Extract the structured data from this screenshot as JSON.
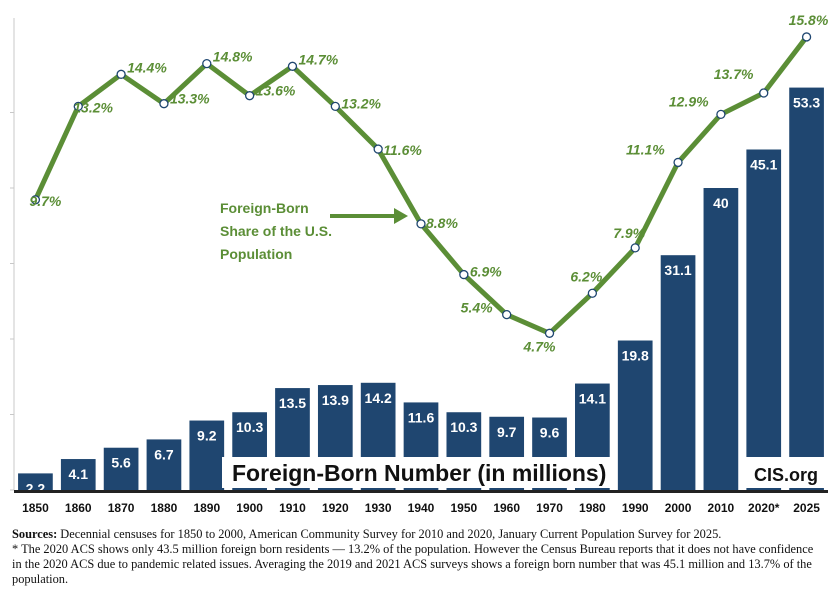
{
  "chart_data": {
    "type": "bar",
    "categories": [
      "1850",
      "1860",
      "1870",
      "1880",
      "1890",
      "1900",
      "1910",
      "1920",
      "1930",
      "1940",
      "1950",
      "1960",
      "1970",
      "1980",
      "1990",
      "2000",
      "2010",
      "2020*",
      "2025"
    ],
    "series": [
      {
        "name": "Foreign-Born Number (in millions)",
        "type": "bar",
        "values": [
          2.2,
          4.1,
          5.6,
          6.7,
          9.2,
          10.3,
          13.5,
          13.9,
          14.2,
          11.6,
          10.3,
          9.7,
          9.6,
          14.1,
          19.8,
          31.1,
          40,
          45.1,
          53.3
        ],
        "labels": [
          "2.2",
          "4.1",
          "5.6",
          "6.7",
          "9.2",
          "10.3",
          "13.5",
          "13.9",
          "14.2",
          "11.6",
          "10.3",
          "9.7",
          "9.6",
          "14.1",
          "19.8",
          "31.1",
          "40",
          "45.1",
          "53.3"
        ],
        "color": "#1f4670"
      },
      {
        "name": "Foreign-Born Share of the U.S. Population",
        "type": "line",
        "values": [
          9.7,
          13.2,
          14.4,
          13.3,
          14.8,
          13.6,
          14.7,
          13.2,
          11.6,
          8.8,
          6.9,
          5.4,
          4.7,
          6.2,
          7.9,
          11.1,
          12.9,
          13.7,
          15.8
        ],
        "labels": [
          "9.7%",
          "13.2%",
          "14.4%",
          "13.3%",
          "14.8%",
          "13.6%",
          "14.7%",
          "13.2%",
          "11.6%",
          "8.8%",
          "6.9%",
          "5.4%",
          "4.7%",
          "6.2%",
          "7.9%",
          "11.1%",
          "12.9%",
          "13.7%",
          "15.8%"
        ],
        "color": "#5b8e36"
      }
    ],
    "bar_title": "Foreign-Born Number (in millions)",
    "line_callout": [
      "Foreign-Born",
      "Share of the U.S.",
      "Population"
    ],
    "source_mark": "CIS.org",
    "ylim_bars": [
      0,
      60
    ],
    "ylim_share": [
      0,
      16
    ],
    "grid": false,
    "colors": {
      "bars": "#1f4670",
      "line": "#5b8e36",
      "marker_fill": "#ffffff",
      "marker_edge": "#1f4670"
    }
  },
  "notes": {
    "sources_label": "Sources:",
    "sources_text": " Decennial censuses for 1850 to 2000, American Community Survey for 2010 and 2020, January Current Population Survey for 2025.",
    "footnote": "* The 2020 ACS shows only 43.5 million foreign born residents — 13.2% of the population. However the Census Bureau reports that it does not have confidence in the 2020 ACS due to pandemic related issues. Averaging the 2019 and 2021 ACS surveys  shows a foreign born number that was 45.1 million and 13.7% of the population."
  }
}
